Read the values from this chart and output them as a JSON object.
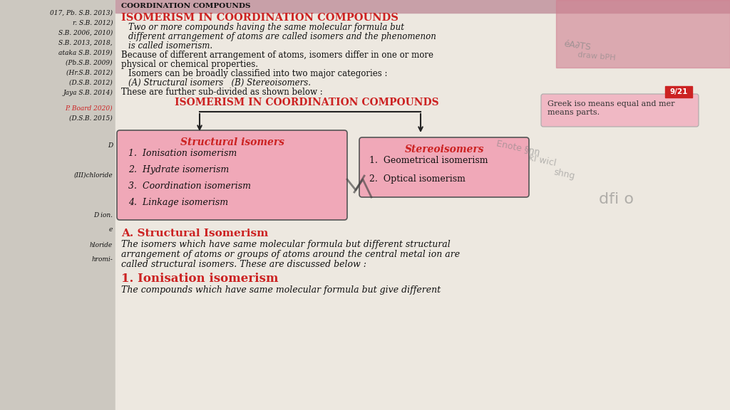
{
  "page_bg": "#ede8e0",
  "left_bg": "#ccc8c0",
  "top_photo_bg": "#c8a0a8",
  "top_right_bg": "#d08090",
  "title_top": "COORDINATION COMPOUNDS",
  "title_main": "ISOMERISM IN COORDINATION COMPOUNDS",
  "intro_lines": [
    "Two or more compounds having the same molecular formula but",
    "different arrangement of atoms are called isomers and the phenomenon",
    "is called isomerism."
  ],
  "para1_lines": [
    "Because of different arrangement of atoms, isomers differ in one or more",
    "physical or chemical properties."
  ],
  "para2": "Isomers can be broadly classified into two major categories :",
  "para3": "(A) Structural isomers   (B) Stereoisomers.",
  "para4": "These are further sub-divided as shown below :",
  "diagram_title": "ISOMERISM IN COORDINATION COMPOUNDS",
  "box1_title": "Structural isomers",
  "box1_items": [
    "1.  Ionisation isomerism",
    "2.  Hydrate isomerism",
    "3.  Coordination isomerism",
    "4.  Linkage isomerism"
  ],
  "box2_title": "Stereoisomers",
  "box2_items": [
    "1.  Geometrical isomerism",
    "2.  Optical isomerism"
  ],
  "side_note_text": "Greek iso means equal and mer\nmeans parts.",
  "side_note_label": "9/21",
  "section_A_title": "A. Structural Isomerism",
  "section_A_lines": [
    "The isomers which have same molecular formula but different structural",
    "arrangement of atoms or groups of atoms around the central metal ion are",
    "called structural isomers. These are discussed below :"
  ],
  "section_1_title": "1. Ionisation isomerism",
  "section_1_body": "The compounds which have same molecular formula but give different",
  "left_items": [
    {
      "text": "017, Pb. S.B. 2013)",
      "color": "#111111"
    },
    {
      "text": "r. S.B. 2012)",
      "color": "#111111"
    },
    {
      "text": "S.B. 2006, 2010)",
      "color": "#111111"
    },
    {
      "text": "S.B. 2013, 2018,",
      "color": "#111111"
    },
    {
      "text": "ataka S.B. 2019)",
      "color": "#111111"
    },
    {
      "text": "(Pb.S.B. 2009)",
      "color": "#111111"
    },
    {
      "text": "(Hr.S.B. 2012)",
      "color": "#111111"
    },
    {
      "text": "(D.S.B. 2012)",
      "color": "#111111"
    },
    {
      "text": "Jaya S.B. 2014)",
      "color": "#111111"
    },
    {
      "text": "P. Board 2020)",
      "color": "#cc2222"
    },
    {
      "text": "(D.S.B. 2015)",
      "color": "#111111"
    },
    {
      "text": "D",
      "color": "#111111"
    },
    {
      "text": "(III)chloride",
      "color": "#111111"
    },
    {
      "text": "D ion.",
      "color": "#111111"
    },
    {
      "text": "e",
      "color": "#111111"
    },
    {
      "text": "hloride",
      "color": "#111111"
    },
    {
      "text": "hromi-",
      "color": "#111111"
    }
  ],
  "box1_color": "#f0a8b8",
  "box2_color": "#f0a8b8",
  "box_edge": "#555555",
  "arrow_color": "#222222",
  "red_color": "#cc2222",
  "dark_text": "#111111",
  "note_bg": "#f0b8c4",
  "note_label_bg": "#cc2222"
}
